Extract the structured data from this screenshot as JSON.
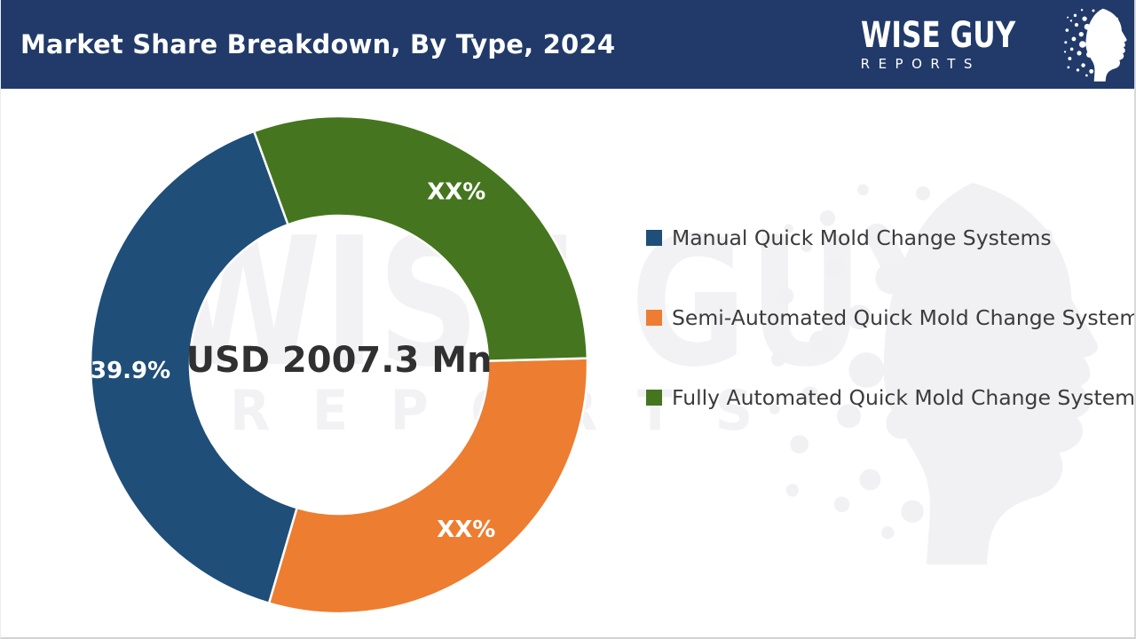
{
  "header": {
    "title": "Market Share Breakdown, By Type, 2024",
    "bg_color": "#213a69",
    "logo": {
      "line1": "WISE GUY",
      "line2": "REPORTS"
    }
  },
  "watermark": {
    "line1": "WISE GUY",
    "line2": "REPORTS"
  },
  "chart_data": {
    "type": "pie",
    "subtype": "donut",
    "title": "Market Share Breakdown, By Type, 2024",
    "center_label": "USD 2007.3 Mn",
    "legend_position": "right",
    "inner_radius_ratio": 0.6,
    "segments": [
      {
        "name": "Manual Quick Mold Change Systems",
        "label": "39.9%",
        "value_pct": 39.9,
        "color": "#1f4e79",
        "start_deg": 110,
        "end_deg": 253.64
      },
      {
        "name": "Semi-Automated Quick Mold Change Systems",
        "label": "XX%",
        "value_pct": null,
        "value_pct_estimated": 30.0,
        "color": "#ed7d31",
        "start_deg": 253.64,
        "end_deg": 361.5
      },
      {
        "name": "Fully Automated Quick Mold Change Systems",
        "label": "XX%",
        "value_pct": null,
        "value_pct_estimated": 30.1,
        "color": "#45761f",
        "start_deg": 1.5,
        "end_deg": 110
      }
    ]
  }
}
